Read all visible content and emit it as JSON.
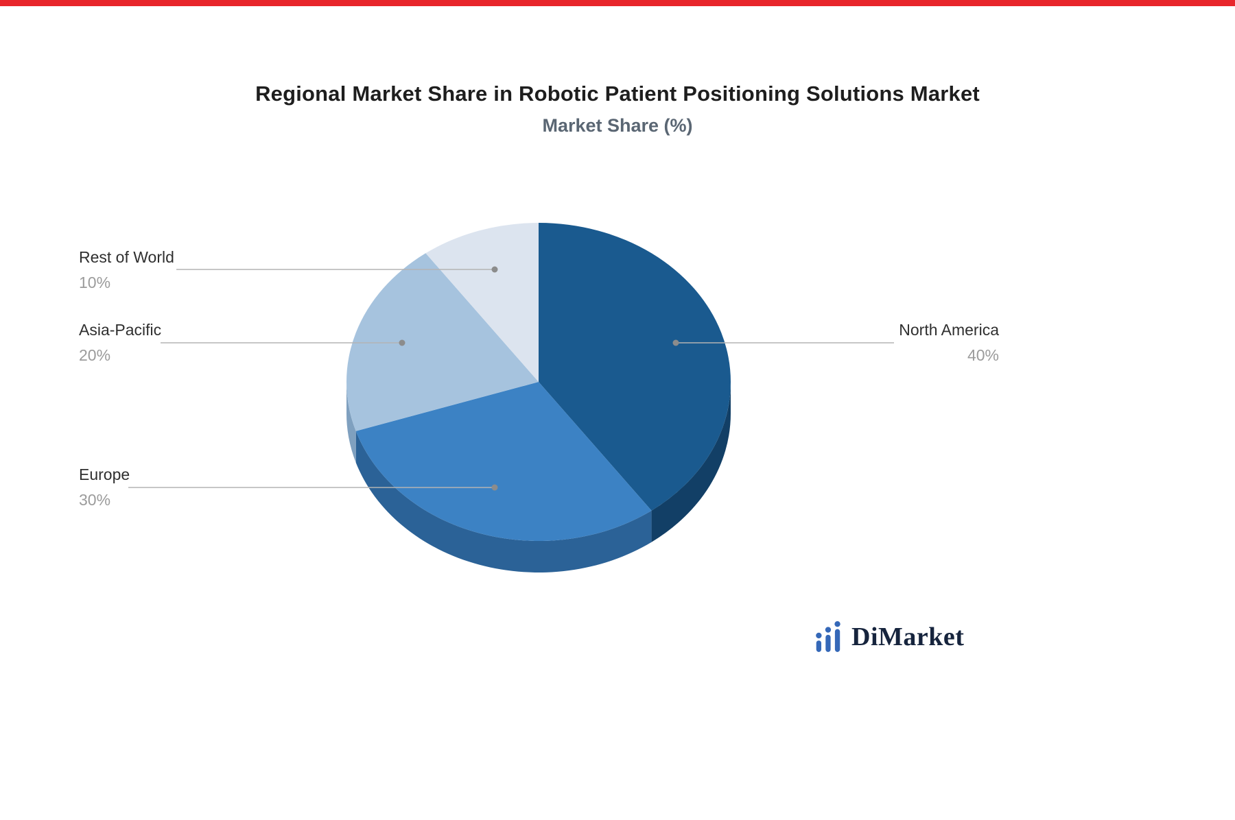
{
  "page": {
    "top_border_color": "#e8262b",
    "background": "#ffffff"
  },
  "header": {
    "title": "Regional Market Share in Robotic Patient Positioning Solutions Market",
    "subtitle": "Market Share (%)"
  },
  "chart_data": {
    "type": "pie",
    "style": "3d",
    "title": "Regional Market Share in Robotic Patient Positioning Solutions Market",
    "subtitle": "Market Share (%)",
    "unit": "%",
    "start_angle_deg": 0,
    "direction": "clockwise",
    "legend_position": "none",
    "slices": [
      {
        "label": "North America",
        "value": 40,
        "display": "40%",
        "color": "#1a5a8f",
        "depth_color": "#123f66"
      },
      {
        "label": "Europe",
        "value": 30,
        "display": "30%",
        "color": "#3c82c4",
        "depth_color": "#2b6297"
      },
      {
        "label": "Asia-Pacific",
        "value": 20,
        "display": "20%",
        "color": "#a6c3de",
        "depth_color": "#7fa0bf"
      },
      {
        "label": "Rest of World",
        "value": 10,
        "display": "10%",
        "color": "#dce4ef",
        "depth_color": "#b6c5d6"
      }
    ]
  },
  "branding": {
    "logo_text": "DiMarket",
    "logo_text_color": "#16243d",
    "logo_icon_color": "#3568b8"
  }
}
